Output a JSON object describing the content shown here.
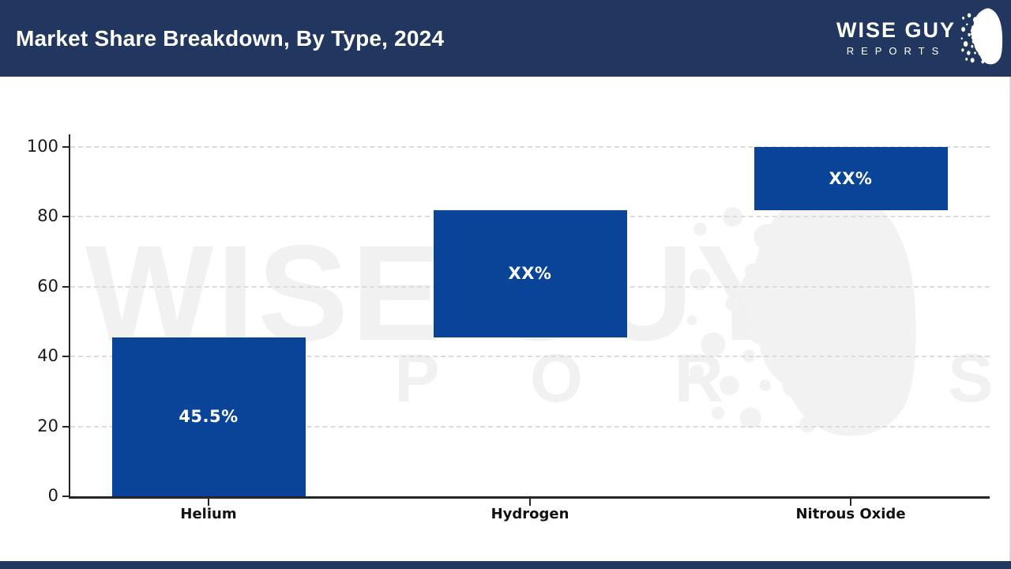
{
  "header": {
    "title": "Market Share Breakdown, By Type, 2024",
    "background_color": "#21375f",
    "logo": {
      "line1": "WISE GUY",
      "line2": "REPORTS"
    }
  },
  "chart_data": {
    "type": "bar",
    "subtype": "waterfall",
    "title": "Market Share Breakdown, By Type, 2024",
    "categories": [
      "Helium",
      "Hydrogen",
      "Nitrous Oxide"
    ],
    "segments": [
      {
        "category": "Helium",
        "start": 0,
        "end": 45.5,
        "value": 45.5,
        "label": "45.5%"
      },
      {
        "category": "Hydrogen",
        "start": 45.5,
        "end": 81.9,
        "value": 36.4,
        "label": "XX%"
      },
      {
        "category": "Nitrous Oxide",
        "start": 81.9,
        "end": 100,
        "value": 18.1,
        "label": "XX%"
      }
    ],
    "xlabel": "",
    "ylabel": "",
    "yticks": [
      0,
      20,
      40,
      60,
      80,
      100
    ],
    "ylim": [
      0,
      104
    ],
    "grid": "horizontal-dashed",
    "legend": "none",
    "bar_color": "#0a4499",
    "bar_label_color": "#ffffff"
  },
  "watermark": {
    "line1": "WISE GUY",
    "line2": "R E P O R T S"
  },
  "theme": {
    "header_navy": "#21375f",
    "footer_navy": "#21375f",
    "axis_color": "#262626",
    "grid_color": "#dcdcdc",
    "tick_label_color": "#1a1a1a",
    "watermark_color": "#f1f1f1",
    "edge_gray": "#d9d9d9"
  }
}
